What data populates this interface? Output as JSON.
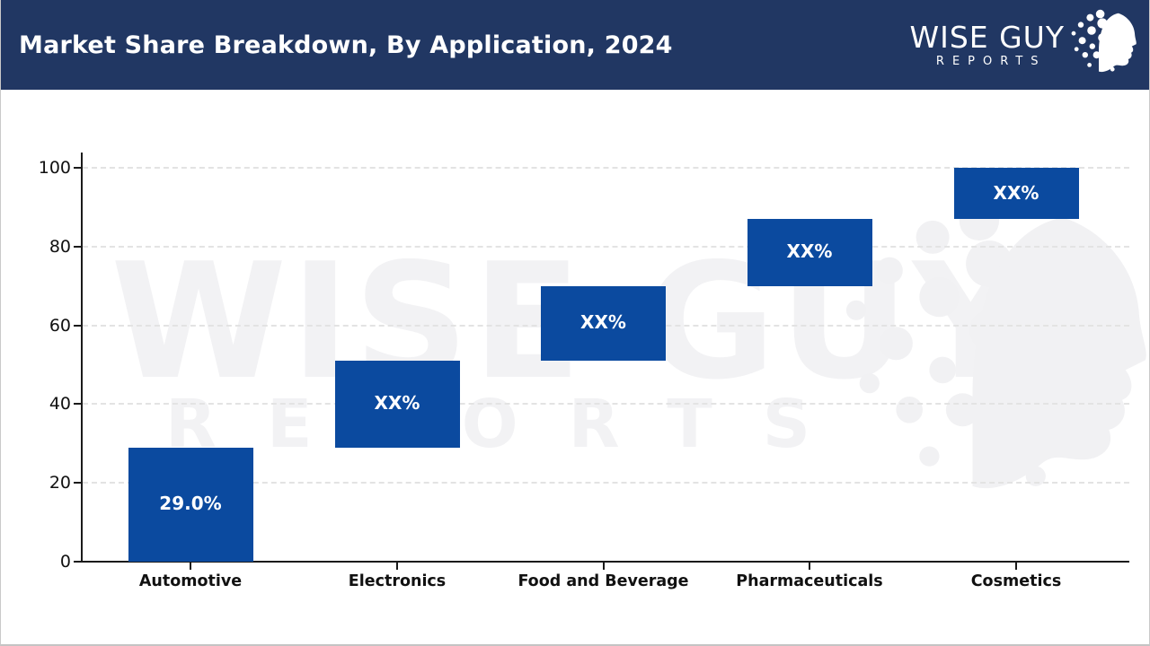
{
  "header": {
    "title": "Market Share Breakdown, By Application, 2024",
    "bg_color": "#213763",
    "brand": {
      "line1": "WISE GUY",
      "line2": "REPORTS"
    }
  },
  "watermark": {
    "line1": "WISE GUY",
    "line2": "REPORTS"
  },
  "chart_data": {
    "type": "bar",
    "subtype": "waterfall",
    "title": "Market Share Breakdown, By Application, 2024",
    "categories": [
      "Automotive",
      "Electronics",
      "Food and Beverage",
      "Pharmaceuticals",
      "Cosmetics"
    ],
    "segments": [
      {
        "label": "Automotive",
        "start": 0,
        "end": 29,
        "value_label": "29.0%"
      },
      {
        "label": "Electronics",
        "start": 29,
        "end": 51,
        "value_label": "XX%"
      },
      {
        "label": "Food and Beverage",
        "start": 51,
        "end": 70,
        "value_label": "XX%"
      },
      {
        "label": "Pharmaceuticals",
        "start": 70,
        "end": 87,
        "value_label": "XX%"
      },
      {
        "label": "Cosmetics",
        "start": 87,
        "end": 100,
        "value_label": "XX%"
      }
    ],
    "y_ticks": [
      0,
      20,
      40,
      60,
      80,
      100
    ],
    "ylim": [
      0,
      100
    ],
    "xlabel": "",
    "ylabel": "",
    "grid": "horizontal-dashed",
    "legend": "none",
    "bar_color": "#0B4A9F",
    "bar_label_color": "#ffffff",
    "axis_color": "#1a1a1a"
  }
}
